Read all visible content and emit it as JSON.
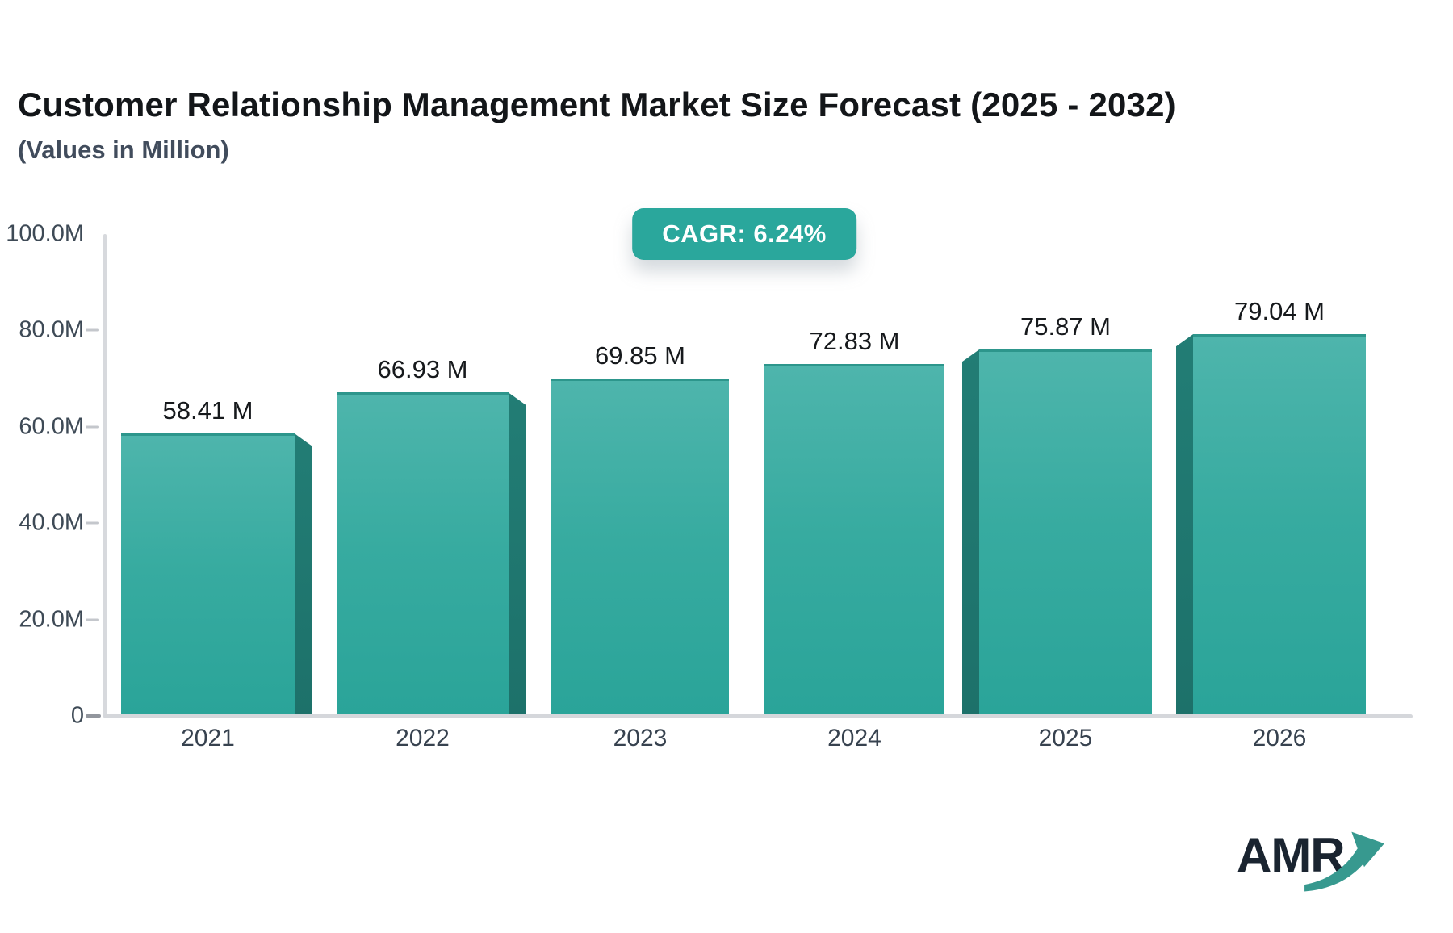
{
  "header": {
    "title": "Customer Relationship Management Market Size Forecast (2025 - 2032)",
    "subtitle": "(Values in Million)",
    "cagr_label": "CAGR: 6.24%"
  },
  "logo": {
    "text": "AMR",
    "arrow_icon": "growth-arrow-icon"
  },
  "colors": {
    "accent_teal": "#2aa79c",
    "bar_gradient_top": "#4eb5ac",
    "bar_gradient_bottom": "#2aa499",
    "bar_side_3d": "#20786f",
    "axis_line": "#d5d7db",
    "axis_text": "#3e4a56",
    "title_text": "#131619",
    "subtitle_text": "#414c5c",
    "logo_navy": "#1a2430",
    "logo_arrow_teal": "#37998f"
  },
  "chart_data": {
    "type": "bar",
    "title": "Customer Relationship Management Market Size Forecast (2025 - 2032)",
    "subtitle": "(Values in Million)",
    "unit": "Million",
    "cagr": "6.24%",
    "categories": [
      "2021",
      "2022",
      "2023",
      "2024",
      "2025",
      "2026"
    ],
    "values": [
      58.41,
      66.93,
      69.85,
      72.83,
      75.87,
      79.04
    ],
    "value_labels": [
      "58.41 M",
      "66.93 M",
      "69.85 M",
      "72.83 M",
      "75.87 M",
      "79.04 M"
    ],
    "xlabel": "",
    "ylabel": "",
    "ylim": [
      0,
      100
    ],
    "y_ticks": [
      {
        "label": "100.0M",
        "value": 100
      },
      {
        "label": "80.0M",
        "value": 80
      },
      {
        "label": "60.0M",
        "value": 60
      },
      {
        "label": "40.0M",
        "value": 40
      },
      {
        "label": "20.0M",
        "value": 20
      },
      {
        "label": "0",
        "value": 0
      }
    ],
    "grid": false,
    "legend": "none",
    "bar_style": "3d-bevel, outer bars beveled toward edges"
  }
}
